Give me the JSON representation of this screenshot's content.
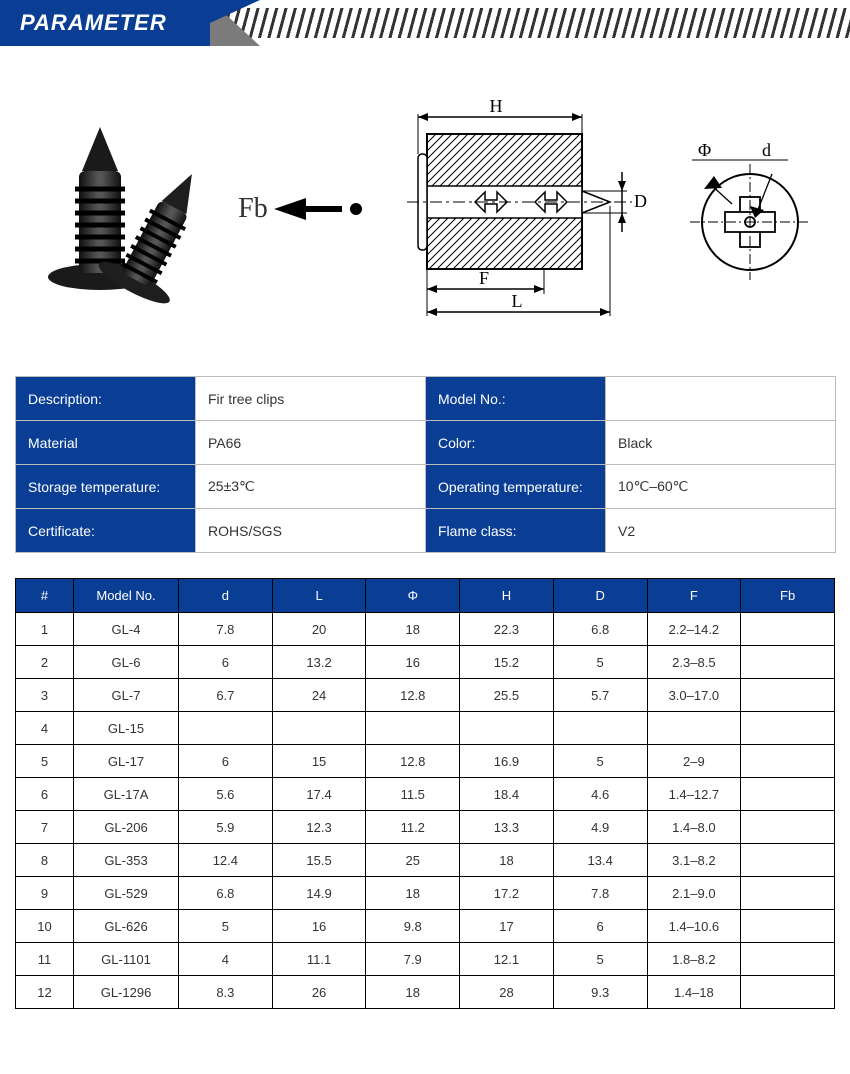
{
  "banner": {
    "title": "PARAMETER",
    "accent_color": "#0a3e95",
    "stripe_color": "#333333"
  },
  "diagram": {
    "force_label": "Fb",
    "labels": {
      "H": "H",
      "D": "D",
      "F": "F",
      "L": "L",
      "Phi": "Φ",
      "d": "d"
    }
  },
  "properties": {
    "rows": [
      {
        "k1": "Description:",
        "v1": "Fir tree clips",
        "k2": "Model No.:",
        "v2": ""
      },
      {
        "k1": "Material",
        "v1": "PA66",
        "k2": "Color:",
        "v2": "Black"
      },
      {
        "k1": "Storage temperature:",
        "v1": "25±3℃",
        "k2": "Operating temperature:",
        "v2": "10℃–60℃"
      },
      {
        "k1": "Certificate:",
        "v1": "ROHS/SGS",
        "k2": "Flame class:",
        "v2": "V2"
      }
    ]
  },
  "specs": {
    "columns": [
      "#",
      "Model No.",
      "d",
      "L",
      "Φ",
      "H",
      "D",
      "F",
      "Fb"
    ],
    "rows": [
      [
        "1",
        "GL-4",
        "7.8",
        "20",
        "18",
        "22.3",
        "6.8",
        "2.2–14.2",
        ""
      ],
      [
        "2",
        "GL-6",
        "6",
        "13.2",
        "16",
        "15.2",
        "5",
        "2.3–8.5",
        ""
      ],
      [
        "3",
        "GL-7",
        "6.7",
        "24",
        "12.8",
        "25.5",
        "5.7",
        "3.0–17.0",
        ""
      ],
      [
        "4",
        "GL-15",
        "",
        "",
        "",
        "",
        "",
        "",
        ""
      ],
      [
        "5",
        "GL-17",
        "6",
        "15",
        "12.8",
        "16.9",
        "5",
        "2–9",
        ""
      ],
      [
        "6",
        "GL-17A",
        "5.6",
        "17.4",
        "11.5",
        "18.4",
        "4.6",
        "1.4–12.7",
        ""
      ],
      [
        "7",
        "GL-206",
        "5.9",
        "12.3",
        "11.2",
        "13.3",
        "4.9",
        "1.4–8.0",
        ""
      ],
      [
        "8",
        "GL-353",
        "12.4",
        "15.5",
        "25",
        "18",
        "13.4",
        "3.1–8.2",
        ""
      ],
      [
        "9",
        "GL-529",
        "6.8",
        "14.9",
        "18",
        "17.2",
        "7.8",
        "2.1–9.0",
        ""
      ],
      [
        "10",
        "GL-626",
        "5",
        "16",
        "9.8",
        "17",
        "6",
        "1.4–10.6",
        ""
      ],
      [
        "11",
        "GL-1101",
        "4",
        "11.1",
        "7.9",
        "12.1",
        "5",
        "1.8–8.2",
        ""
      ],
      [
        "12",
        "GL-1296",
        "8.3",
        "26",
        "18",
        "28",
        "9.3",
        "1.4–18",
        ""
      ]
    ]
  }
}
